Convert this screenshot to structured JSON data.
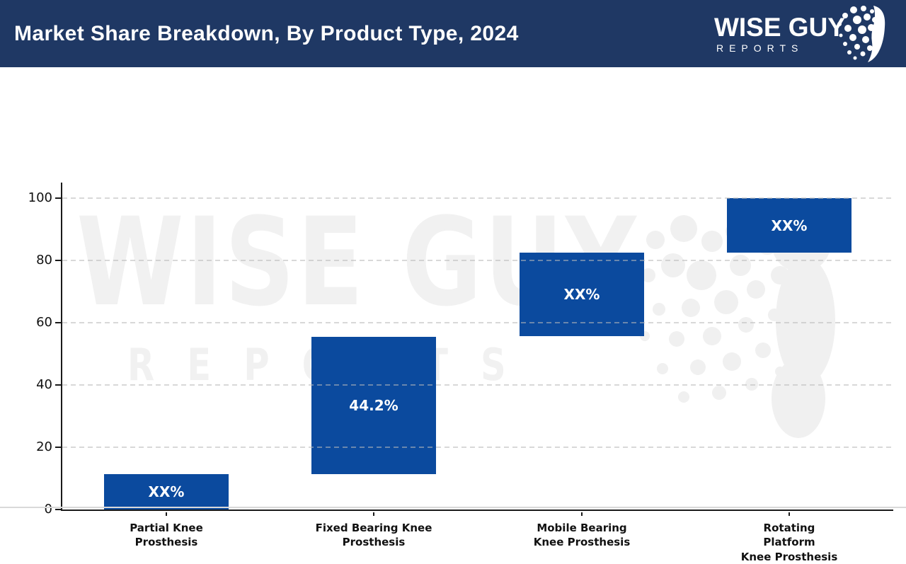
{
  "header": {
    "title": "Market Share Breakdown, By Product Type, 2024",
    "brand": {
      "name": "WISE GUY",
      "subtitle": "REPORTS"
    },
    "background_color": "#1F3864"
  },
  "watermark": {
    "line1": "WISE GUY",
    "line2": "R E P O R T S"
  },
  "chart_data": {
    "type": "bar",
    "subtype": "waterfall",
    "title": "Market Share Breakdown, By Product Type, 2024",
    "xlabel": "",
    "ylabel": "",
    "categories": [
      "Partial Knee\nProsthesis",
      "Fixed Bearing Knee\nProsthesis",
      "Mobile Bearing\nKnee Prosthesis",
      "Rotating Platform\nKnee Prosthesis"
    ],
    "segments": [
      [
        0,
        11.4
      ],
      [
        11.4,
        55.6
      ],
      [
        55.6,
        82.5
      ],
      [
        82.5,
        100
      ]
    ],
    "increments": [
      11.4,
      44.2,
      26.9,
      17.5
    ],
    "bar_labels": [
      "XX%",
      "44.2%",
      "XX%",
      "XX%"
    ],
    "yticks": [
      0,
      20,
      40,
      60,
      80,
      100
    ],
    "ylim": [
      0,
      105
    ],
    "grid": true,
    "legend": false,
    "bar_color": "#0B4A9E",
    "label_color": "#ffffff",
    "axis_color": "#1a1a1a"
  }
}
